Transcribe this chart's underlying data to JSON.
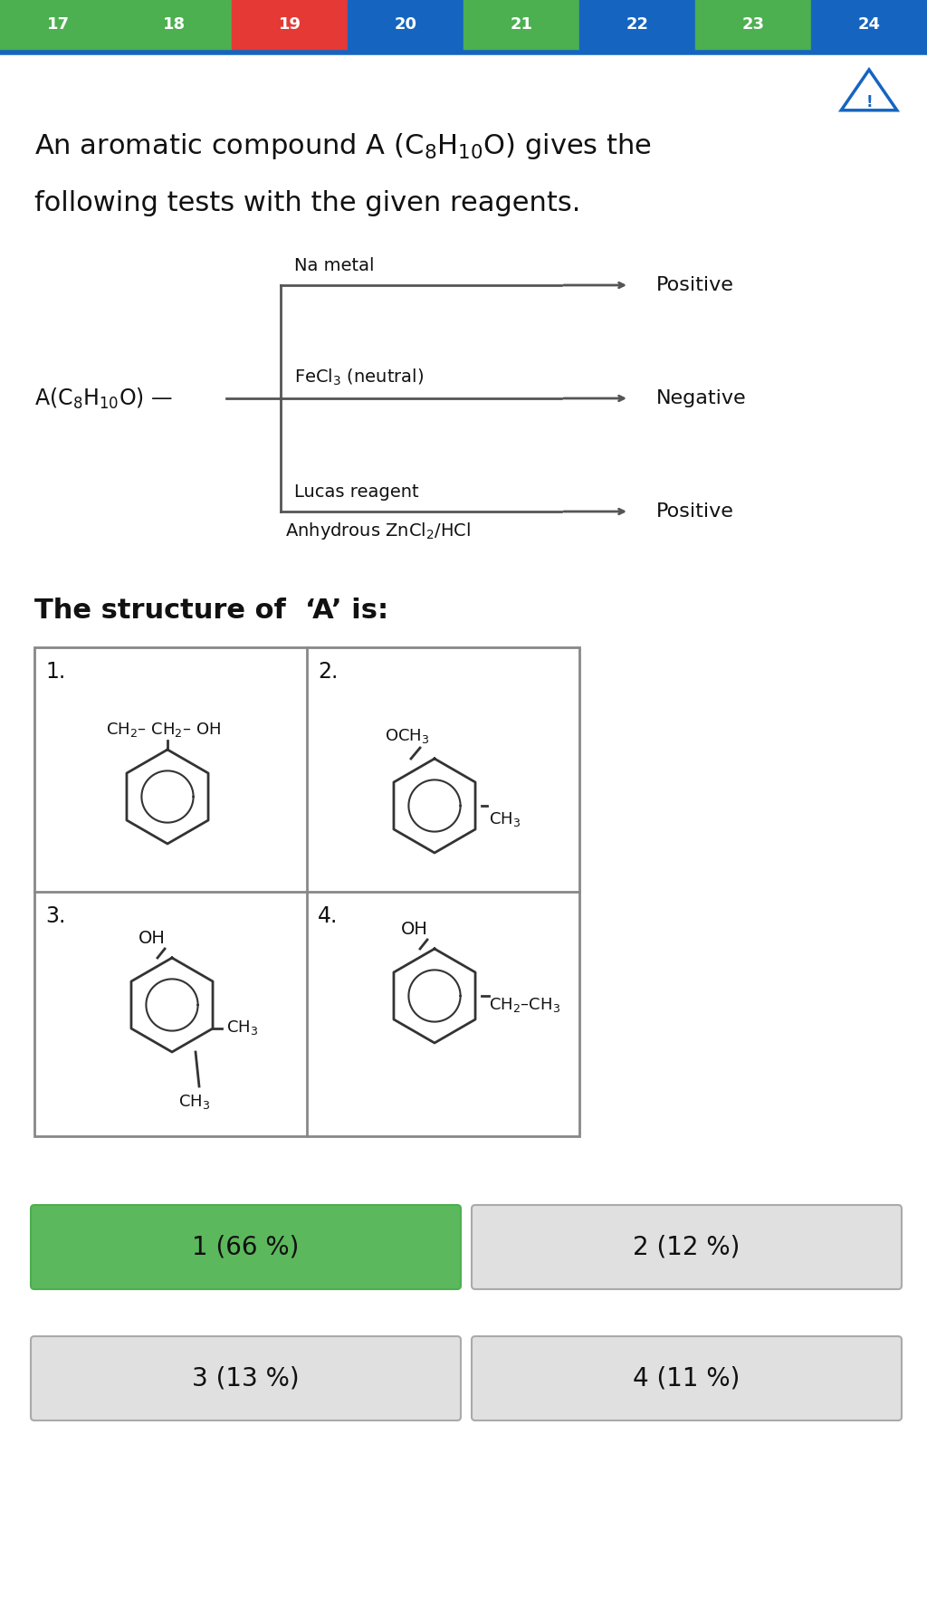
{
  "option_buttons": [
    "1 (66 %)",
    "2 (12 %)",
    "3 (13 %)",
    "4 (11 %)"
  ],
  "button_colors": [
    "#5cb85c",
    "#e0e0e0",
    "#e0e0e0",
    "#e0e0e0"
  ],
  "header_colors": [
    "#4caf50",
    "#4caf50",
    "#e53935",
    "#1565c0",
    "#4caf50",
    "#1565c0",
    "#4caf50",
    "#1565c0"
  ],
  "header_numbers": [
    "17",
    "18",
    "19",
    "20",
    "21",
    "22",
    "23",
    "24"
  ],
  "bg_color": "#ffffff"
}
